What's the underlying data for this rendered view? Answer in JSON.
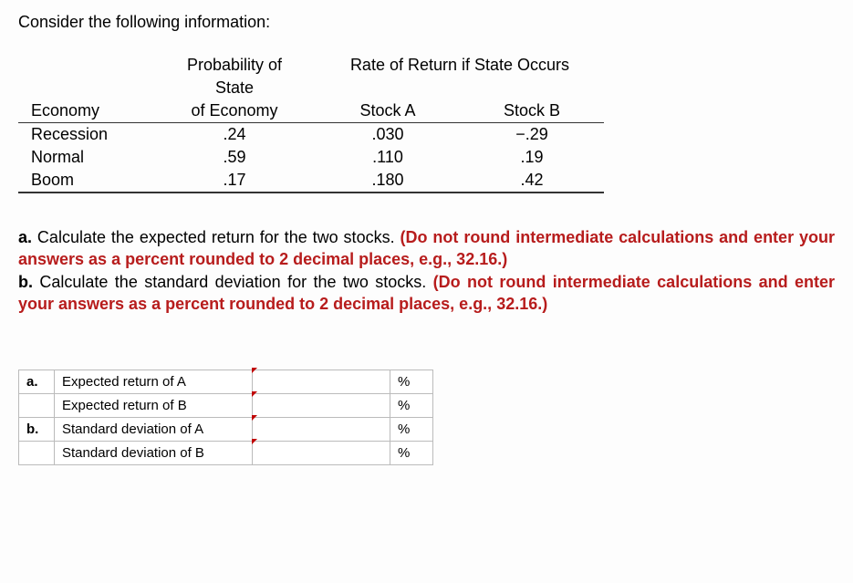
{
  "intro": "Consider the following information:",
  "table": {
    "headers": {
      "prob_line1": "Probability of",
      "prob_line2": "State",
      "rate_merged": "Rate of Return if State Occurs",
      "economy": "Economy",
      "of_economy": "of Economy",
      "stock_a": "Stock A",
      "stock_b": "Stock B"
    },
    "rows": [
      {
        "economy": "Recession",
        "prob": ".24",
        "a": ".030",
        "b": "−.29"
      },
      {
        "economy": "Normal",
        "prob": ".59",
        "a": ".110",
        "b": ".19"
      },
      {
        "economy": "Boom",
        "prob": ".17",
        "a": ".180",
        "b": ".42"
      }
    ]
  },
  "questions": {
    "a_label": "a.",
    "a_text": " Calculate the expected return for the two stocks. ",
    "a_red": "(Do not round intermediate calculations and enter your answers as a percent rounded to 2 decimal places, e.g., 32.16.)",
    "b_label": "b.",
    "b_text": " Calculate the standard deviation for the two stocks. ",
    "b_red": "(Do not round intermediate calculations and enter your answers as a percent rounded to 2 decimal places, e.g., 32.16.)"
  },
  "answers": {
    "rows": [
      {
        "label": "a.",
        "desc": "Expected return of A",
        "unit": "%"
      },
      {
        "label": "",
        "desc": "Expected return of B",
        "unit": "%"
      },
      {
        "label": "b.",
        "desc": "Standard deviation of A",
        "unit": "%"
      },
      {
        "label": "",
        "desc": "Standard deviation of B",
        "unit": "%"
      }
    ]
  }
}
